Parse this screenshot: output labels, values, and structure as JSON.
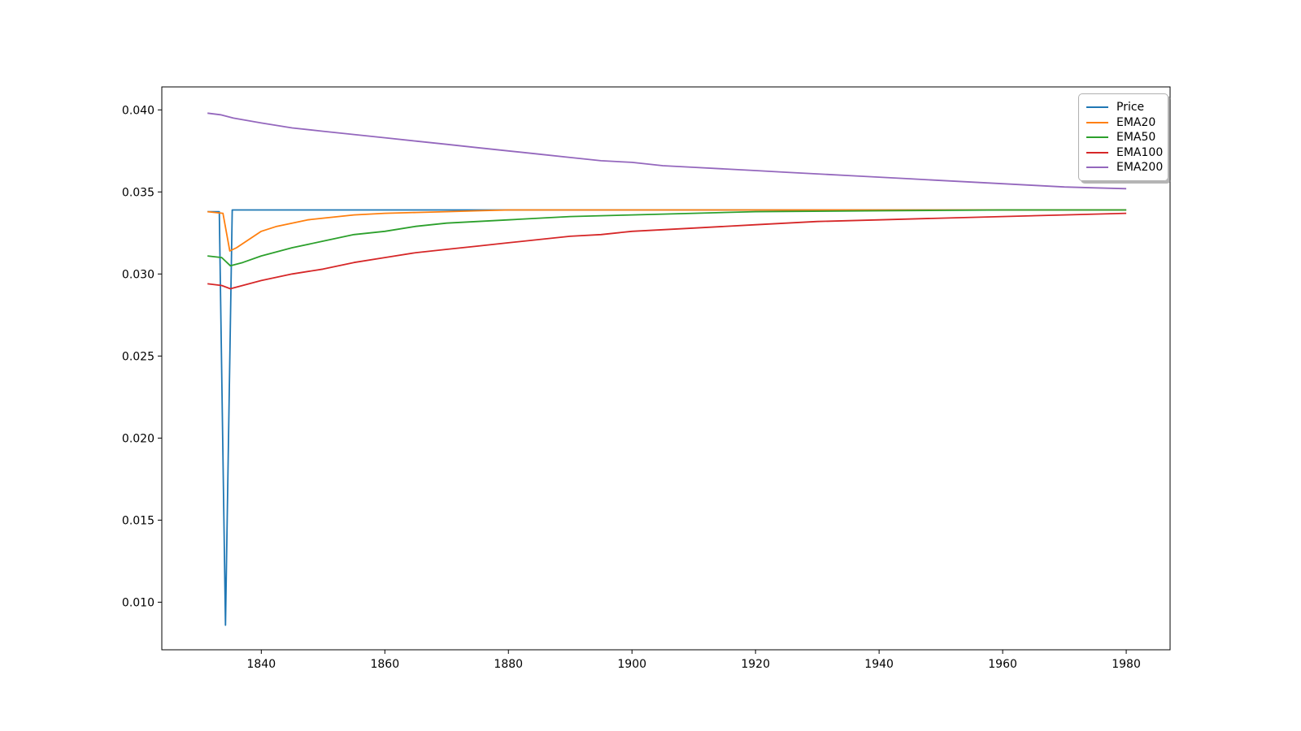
{
  "figure": {
    "background_color": "#ffffff",
    "spine_color": "#000000"
  },
  "chart_data": {
    "type": "line",
    "title": "",
    "xlabel": "",
    "ylabel": "",
    "grid": false,
    "xlim": [
      1823.9,
      1987.1
    ],
    "ylim": [
      0.0071,
      0.0414
    ],
    "x_ticks": {
      "values": [
        1840,
        1860,
        1880,
        1900,
        1920,
        1940,
        1960,
        1980
      ],
      "labels": [
        "1840",
        "1860",
        "1880",
        "1900",
        "1920",
        "1940",
        "1960",
        "1980"
      ]
    },
    "y_ticks": {
      "values": [
        0.01,
        0.015,
        0.02,
        0.025,
        0.03,
        0.035,
        0.04
      ],
      "labels": [
        "0.010",
        "0.015",
        "0.020",
        "0.025",
        "0.030",
        "0.035",
        "0.040"
      ]
    },
    "legend": {
      "position": "upper right"
    },
    "series": [
      {
        "name": "Price",
        "color": "#1f77b4",
        "points": [
          [
            1831.3,
            0.0338
          ],
          [
            1833.2,
            0.0338
          ],
          [
            1834.2,
            0.0086
          ],
          [
            1835.3,
            0.0339
          ],
          [
            1900,
            0.0339
          ],
          [
            1980,
            0.0339
          ]
        ]
      },
      {
        "name": "EMA20",
        "color": "#ff7f0e",
        "points": [
          [
            1831.3,
            0.0338
          ],
          [
            1833.8,
            0.0337
          ],
          [
            1834.9,
            0.0314
          ],
          [
            1836,
            0.0316
          ],
          [
            1838,
            0.0321
          ],
          [
            1840,
            0.0326
          ],
          [
            1842.5,
            0.0329
          ],
          [
            1845,
            0.0331
          ],
          [
            1847.5,
            0.0333
          ],
          [
            1850,
            0.0334
          ],
          [
            1855,
            0.0336
          ],
          [
            1860,
            0.0337
          ],
          [
            1865,
            0.03375
          ],
          [
            1870,
            0.0338
          ],
          [
            1875,
            0.03385
          ],
          [
            1880,
            0.0339
          ],
          [
            1900,
            0.0339
          ],
          [
            1940,
            0.0339
          ],
          [
            1980,
            0.0339
          ]
        ]
      },
      {
        "name": "EMA50",
        "color": "#2ca02c",
        "points": [
          [
            1831.3,
            0.0311
          ],
          [
            1833.6,
            0.031
          ],
          [
            1835,
            0.0305
          ],
          [
            1837,
            0.0307
          ],
          [
            1840,
            0.0311
          ],
          [
            1845,
            0.0316
          ],
          [
            1850,
            0.032
          ],
          [
            1855,
            0.0324
          ],
          [
            1860,
            0.0326
          ],
          [
            1865,
            0.0329
          ],
          [
            1870,
            0.0331
          ],
          [
            1875,
            0.0332
          ],
          [
            1880,
            0.0333
          ],
          [
            1885,
            0.0334
          ],
          [
            1890,
            0.0335
          ],
          [
            1900,
            0.0336
          ],
          [
            1910,
            0.0337
          ],
          [
            1920,
            0.0338
          ],
          [
            1940,
            0.03385
          ],
          [
            1960,
            0.0339
          ],
          [
            1980,
            0.0339
          ]
        ]
      },
      {
        "name": "EMA100",
        "color": "#d62728",
        "points": [
          [
            1831.3,
            0.0294
          ],
          [
            1833.6,
            0.0293
          ],
          [
            1835,
            0.0291
          ],
          [
            1840,
            0.0296
          ],
          [
            1845,
            0.03
          ],
          [
            1850,
            0.0303
          ],
          [
            1855,
            0.0307
          ],
          [
            1860,
            0.031
          ],
          [
            1865,
            0.0313
          ],
          [
            1870,
            0.0315
          ],
          [
            1875,
            0.0317
          ],
          [
            1880,
            0.0319
          ],
          [
            1885,
            0.0321
          ],
          [
            1890,
            0.0323
          ],
          [
            1895,
            0.0324
          ],
          [
            1900,
            0.0326
          ],
          [
            1910,
            0.0328
          ],
          [
            1920,
            0.033
          ],
          [
            1930,
            0.0332
          ],
          [
            1940,
            0.0333
          ],
          [
            1950,
            0.0334
          ],
          [
            1960,
            0.0335
          ],
          [
            1970,
            0.0336
          ],
          [
            1980,
            0.0337
          ]
        ]
      },
      {
        "name": "EMA200",
        "color": "#9467bd",
        "points": [
          [
            1831.3,
            0.0398
          ],
          [
            1833.4,
            0.0397
          ],
          [
            1835.5,
            0.0395
          ],
          [
            1840,
            0.0392
          ],
          [
            1845,
            0.0389
          ],
          [
            1850,
            0.0387
          ],
          [
            1855,
            0.0385
          ],
          [
            1860,
            0.0383
          ],
          [
            1865,
            0.0381
          ],
          [
            1870,
            0.0379
          ],
          [
            1875,
            0.0377
          ],
          [
            1880,
            0.0375
          ],
          [
            1885,
            0.0373
          ],
          [
            1890,
            0.0371
          ],
          [
            1895,
            0.0369
          ],
          [
            1900,
            0.0368
          ],
          [
            1905,
            0.0366
          ],
          [
            1910,
            0.0365
          ],
          [
            1915,
            0.0364
          ],
          [
            1920,
            0.0363
          ],
          [
            1925,
            0.0362
          ],
          [
            1930,
            0.0361
          ],
          [
            1935,
            0.036
          ],
          [
            1940,
            0.0359
          ],
          [
            1945,
            0.0358
          ],
          [
            1950,
            0.0357
          ],
          [
            1955,
            0.0356
          ],
          [
            1960,
            0.0355
          ],
          [
            1965,
            0.0354
          ],
          [
            1970,
            0.0353
          ],
          [
            1975,
            0.03525
          ],
          [
            1980,
            0.0352
          ]
        ]
      }
    ]
  }
}
